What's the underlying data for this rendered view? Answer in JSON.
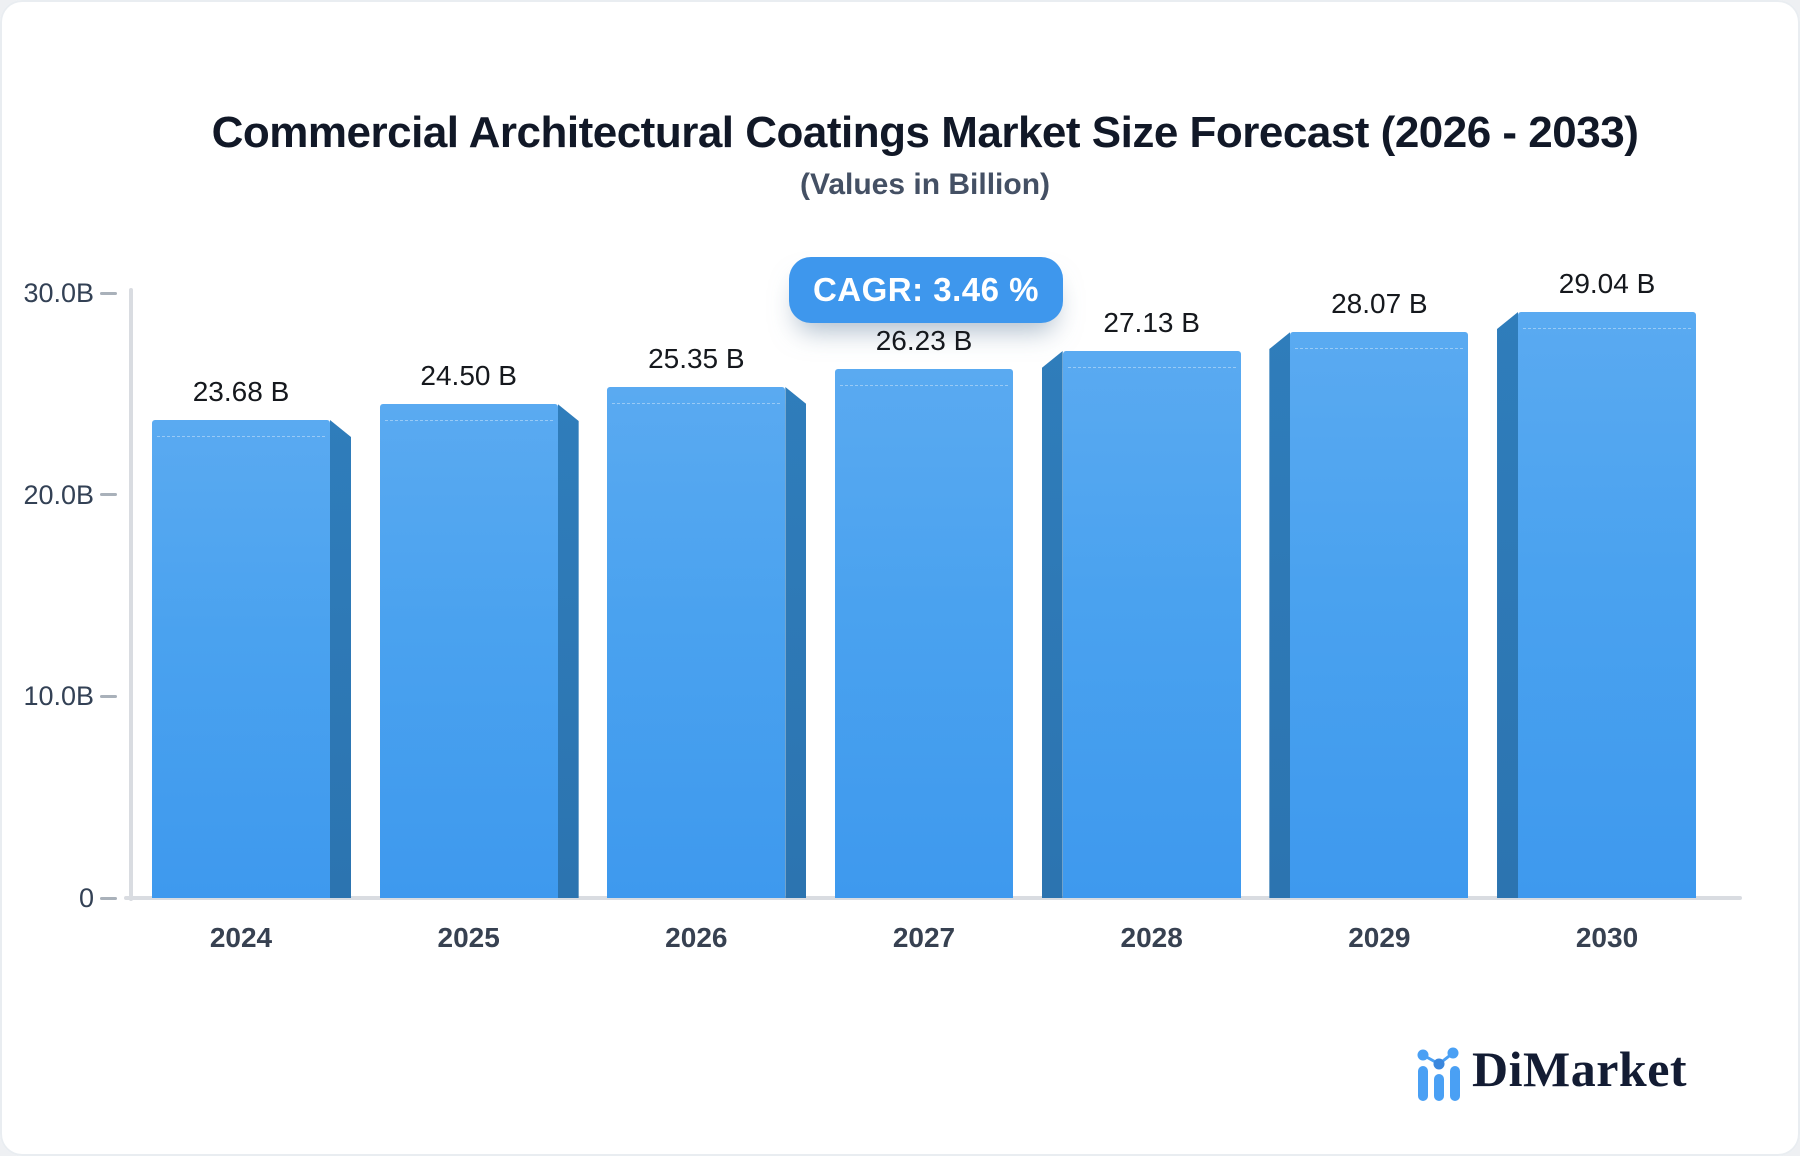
{
  "title": "Commercial Architectural Coatings Market Size Forecast (2026 - 2033)",
  "subtitle": "(Values in Billion)",
  "cagr_badge": "CAGR: 3.46 %",
  "brand": {
    "name": "DiMarket",
    "icon": "bar-chart-logo-icon"
  },
  "colors": {
    "accent_badge": "#3e97ed",
    "bar_front_top": "#5aaaf1",
    "bar_front_bottom": "#3e99ee",
    "bar_side": "#2e78b6",
    "title_text": "#111827",
    "subtitle_text": "#445064",
    "axis_line": "#d9dce1",
    "tick_text": "#334155",
    "year_text": "#374151",
    "value_text": "#15181d",
    "badge_text": "#ffffff",
    "logo_text": "#131c33",
    "logo_icon": "#4aa0f4"
  },
  "chart_data": {
    "type": "bar",
    "title": "Commercial Architectural Coatings Market Size Forecast (2026 - 2033)",
    "subtitle": "(Values in Billion)",
    "categories": [
      "2024",
      "2025",
      "2026",
      "2027",
      "2028",
      "2029",
      "2030"
    ],
    "values": [
      23.68,
      24.5,
      25.35,
      26.23,
      27.13,
      28.07,
      29.04
    ],
    "value_labels": [
      "23.68 B",
      "24.50 B",
      "25.35 B",
      "26.23 B",
      "27.13 B",
      "28.07 B",
      "29.04 B"
    ],
    "series_unit": "Billion",
    "y_ticks": [
      {
        "label": "30.0B",
        "value": 30
      },
      {
        "label": "20.0B",
        "value": 20
      },
      {
        "label": "10.0B",
        "value": 10
      },
      {
        "label": "0",
        "value": 0
      }
    ],
    "ylim": [
      0,
      30
    ],
    "grid": false,
    "legend": "none",
    "annotations": [
      {
        "text": "CAGR: 3.46 %",
        "type": "badge"
      }
    ]
  }
}
